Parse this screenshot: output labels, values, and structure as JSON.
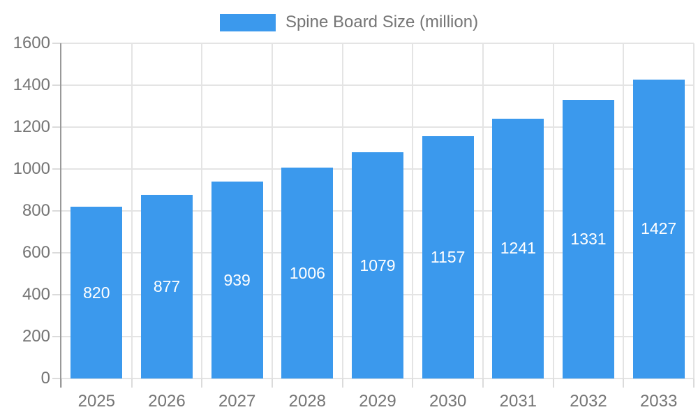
{
  "legend": {
    "label": "Spine Board Size (million)"
  },
  "chart_data": {
    "type": "bar",
    "title": "",
    "xlabel": "",
    "ylabel": "",
    "categories": [
      "2025",
      "2026",
      "2027",
      "2028",
      "2029",
      "2030",
      "2031",
      "2032",
      "2033"
    ],
    "series": [
      {
        "name": "Spine Board Size (million)",
        "values": [
          820,
          877,
          939,
          1006,
          1079,
          1157,
          1241,
          1331,
          1427
        ]
      }
    ],
    "ylim": [
      0,
      1600
    ],
    "yticks": [
      0,
      200,
      400,
      600,
      800,
      1000,
      1200,
      1400,
      1600
    ],
    "grid": true,
    "legend_position": "top",
    "value_label_position": "inside-center"
  },
  "colors": {
    "bar": "#3B99ED",
    "grid_line": "#E4E4E4",
    "axis_line": "#999999",
    "tick_line": "#DBDBDB",
    "axis_label": "#757575",
    "value_label": "#FFFFFF",
    "background": "#FFFFFF"
  }
}
